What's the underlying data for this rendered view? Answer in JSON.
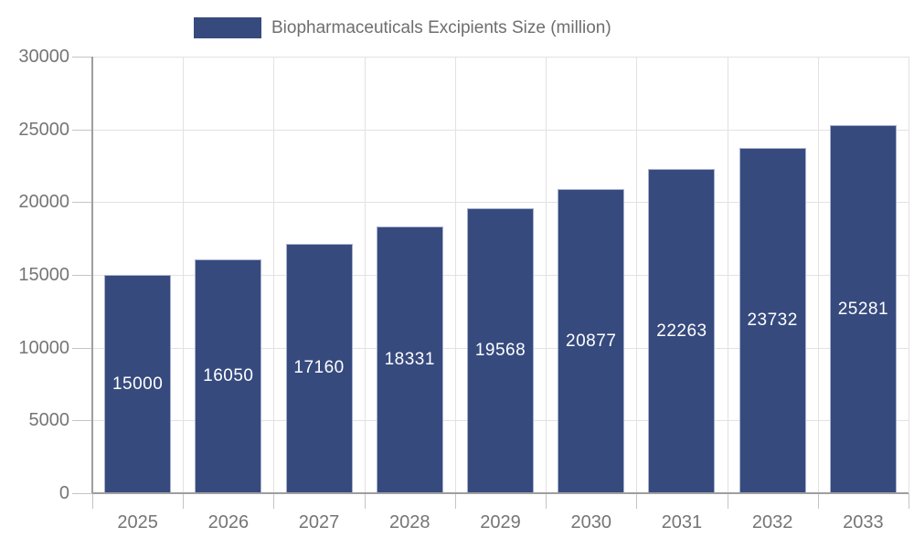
{
  "chart_data": {
    "type": "bar",
    "title": "Biopharmaceuticals Excipients Size (million)",
    "categories": [
      "2025",
      "2026",
      "2027",
      "2028",
      "2029",
      "2030",
      "2031",
      "2032",
      "2033"
    ],
    "values": [
      15000,
      16050,
      17160,
      18331,
      19568,
      20877,
      22263,
      23732,
      25281
    ],
    "value_labels": [
      "15000",
      "16050",
      "17160",
      "18331",
      "19568",
      "20877",
      "22263",
      "23732",
      "25281"
    ],
    "ylim": [
      0,
      30000
    ],
    "ytick_step": 5000,
    "ytick_labels": [
      "0",
      "5000",
      "10000",
      "15000",
      "20000",
      "25000",
      "30000"
    ],
    "grid": true,
    "legend_position": "top",
    "value_label_position": "inside-center",
    "colors": {
      "bar": "#364A7E",
      "bar_edge": "#A9B1CD",
      "value_label": "#FFFFFF",
      "grid_line": "#E2E2E2",
      "axis_line": "#9E9E9E",
      "tick_line": "#C4C4C4",
      "tick_label": "#757575",
      "legend_text": "#6E6E6E",
      "background": "#FFFFFF"
    }
  }
}
